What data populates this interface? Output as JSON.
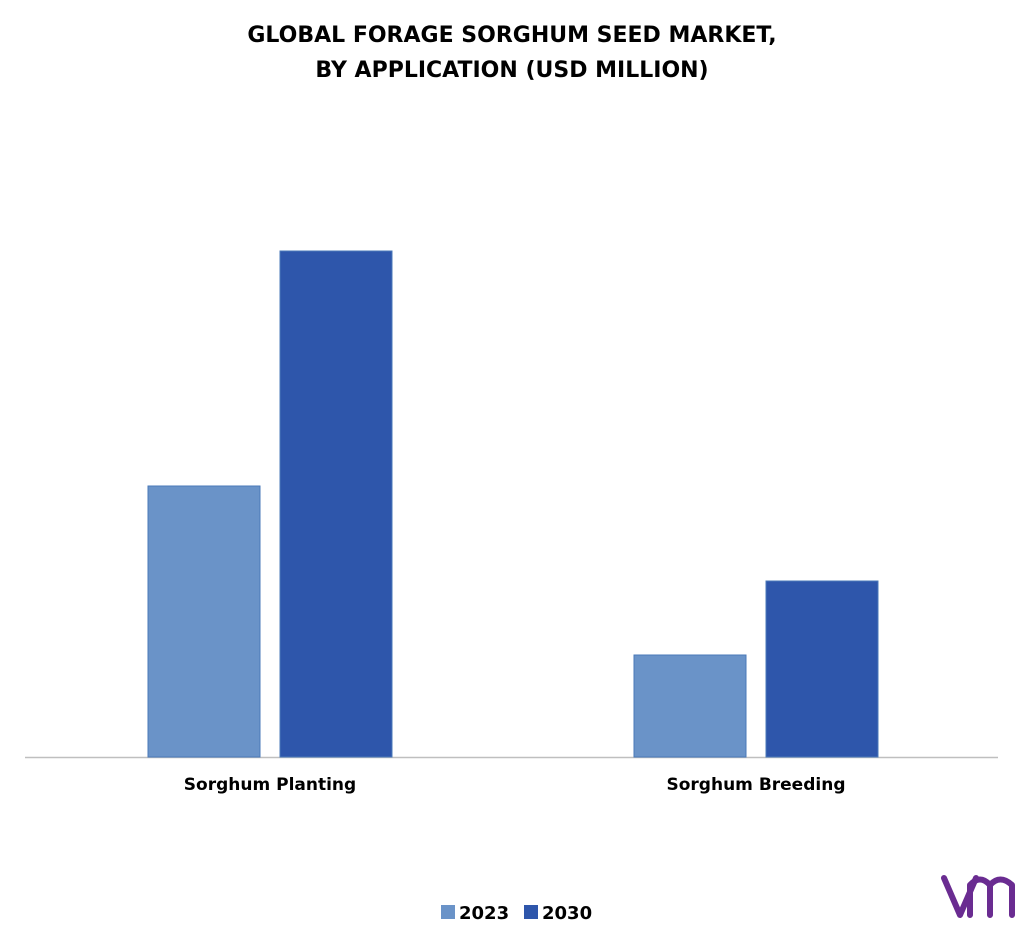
{
  "chart_data": {
    "type": "bar",
    "title": [
      "GLOBAL FORAGE SORGHUM SEED MARKET,",
      "BY APPLICATION (USD MILLION)"
    ],
    "categories": [
      "Sorghum Planting",
      "Sorghum Breeding"
    ],
    "series": [
      {
        "name": "2023",
        "color": "#6a93c8",
        "values": [
          271,
          102
        ]
      },
      {
        "name": "2030",
        "color": "#2e56ab",
        "values": [
          506,
          176
        ]
      }
    ],
    "legend": "bottom"
  }
}
